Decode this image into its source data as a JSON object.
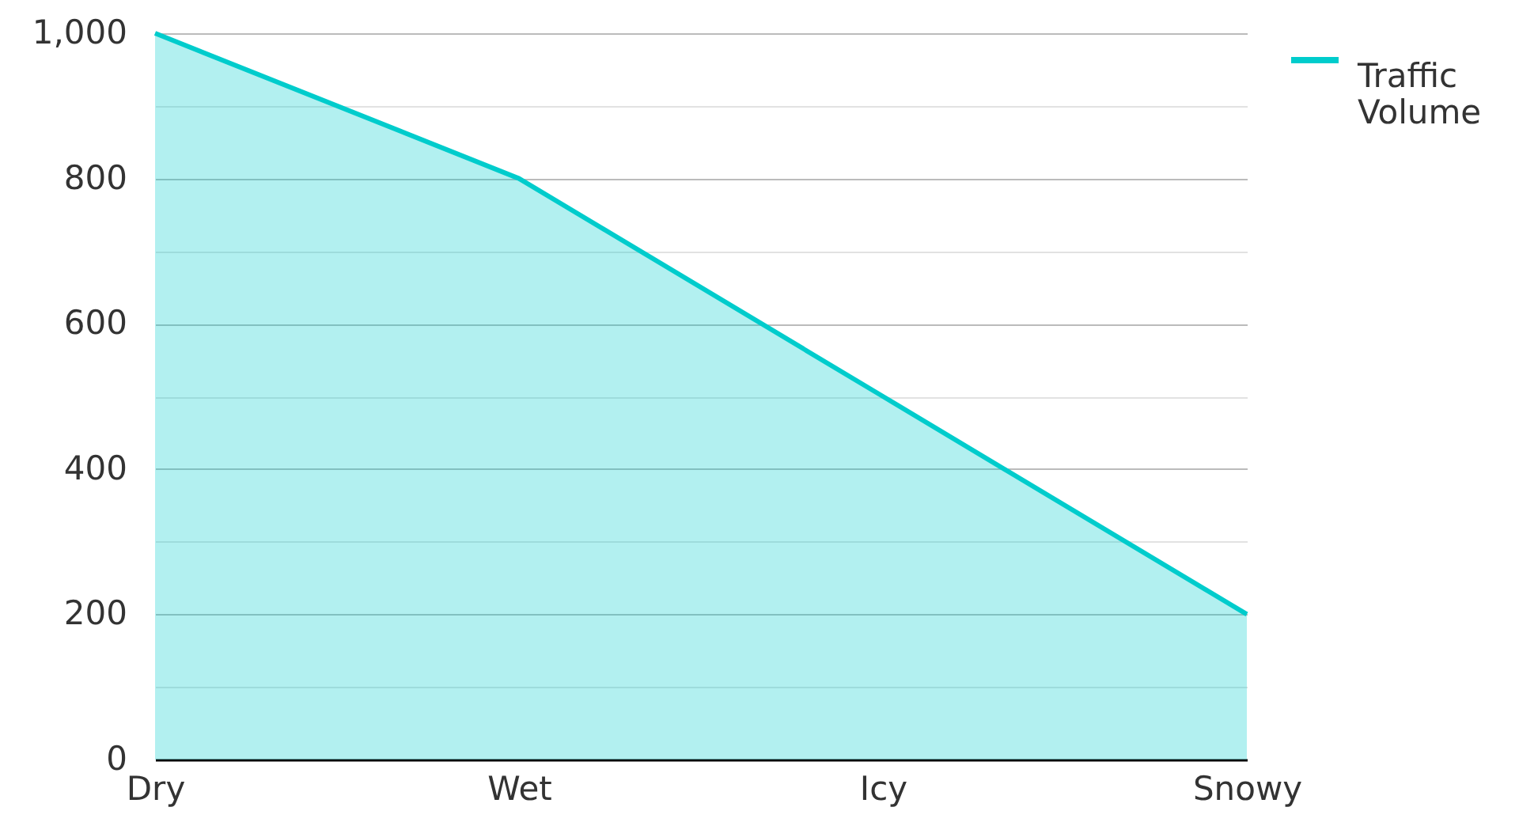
{
  "chart_data": {
    "type": "area",
    "categories": [
      "Dry",
      "Wet",
      "Icy",
      "Snowy"
    ],
    "series": [
      {
        "name": "Traffic Volume",
        "color": "#00cccc",
        "values": [
          1000,
          800,
          500,
          200
        ]
      }
    ],
    "ylim": [
      0,
      1000
    ],
    "yticks": [
      0,
      {
        "value": 100,
        "label": null
      },
      200,
      {
        "value": 300,
        "label": null
      },
      400,
      {
        "value": 500,
        "label": null
      },
      600,
      {
        "value": 700,
        "label": null
      },
      800,
      {
        "value": 900,
        "label": null
      },
      {
        "value": 1000,
        "label": "1,000"
      }
    ],
    "grid": "y",
    "legend": "top right"
  }
}
